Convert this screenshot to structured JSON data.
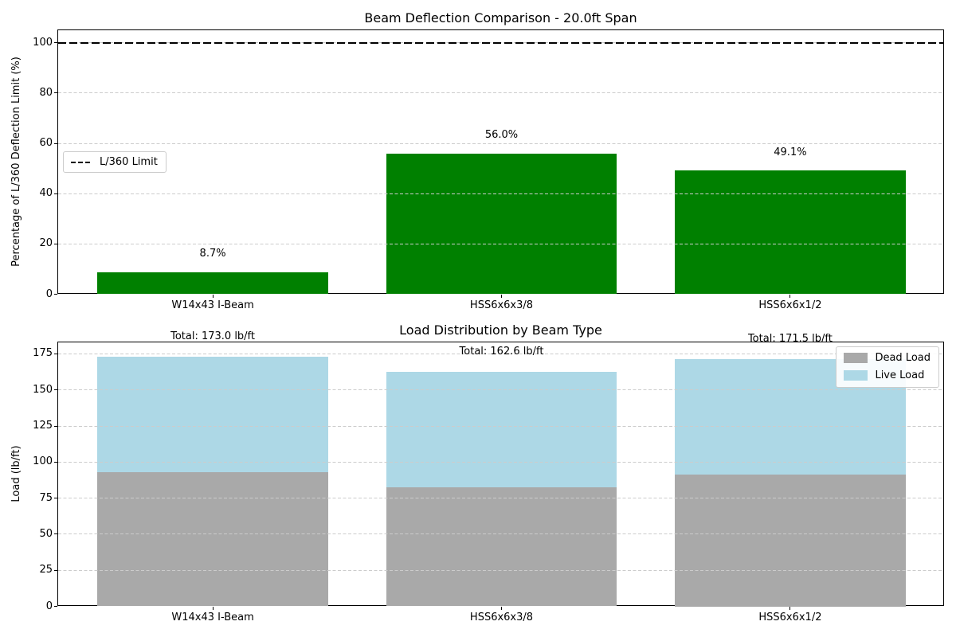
{
  "figure": {
    "background": "#ffffff"
  },
  "chart_data": [
    {
      "type": "bar",
      "title": "Beam Deflection Comparison - 20.0ft Span",
      "ylabel": "Percentage of L/360 Deflection Limit (%)",
      "xlabel": "",
      "categories": [
        "W14x43 I-Beam",
        "HSS6x6x3/8",
        "HSS6x6x1/2"
      ],
      "values": [
        8.7,
        56.0,
        49.1
      ],
      "bar_labels": [
        "8.7%",
        "56.0%",
        "49.1%"
      ],
      "bar_color": "#008000",
      "yticks": [
        0,
        20,
        40,
        60,
        80,
        100
      ],
      "ylim": [
        0,
        105
      ],
      "grid": "horizontal-dashed",
      "reference_line": {
        "value": 100,
        "label": "L/360 Limit",
        "color": "#000000",
        "style": "dashed"
      },
      "legend_position": "center-left"
    },
    {
      "type": "bar",
      "subtype": "stacked",
      "title": "Load Distribution by Beam Type",
      "ylabel": "Load (lb/ft)",
      "xlabel": "",
      "categories": [
        "W14x43 I-Beam",
        "HSS6x6x3/8",
        "HSS6x6x1/2"
      ],
      "series": [
        {
          "name": "Dead Load",
          "color": "#a9a9a9",
          "values": [
            93.0,
            82.6,
            91.5
          ]
        },
        {
          "name": "Live Load",
          "color": "#add8e6",
          "values": [
            80.0,
            80.0,
            80.0
          ]
        }
      ],
      "totals": [
        173.0,
        162.6,
        171.5
      ],
      "total_labels": [
        "Total: 173.0 lb/ft",
        "Total: 162.6 lb/ft",
        "Total: 171.5 lb/ft"
      ],
      "yticks": [
        0,
        25,
        50,
        75,
        100,
        125,
        150,
        175
      ],
      "ylim": [
        0,
        183
      ],
      "grid": "horizontal-dashed",
      "legend_position": "top-right"
    }
  ]
}
